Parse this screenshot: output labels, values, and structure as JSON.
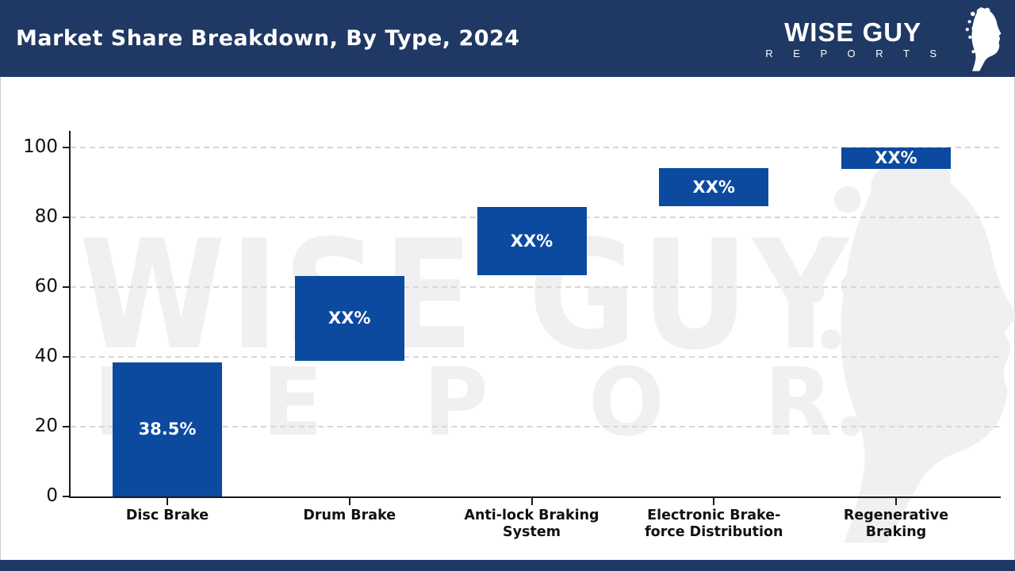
{
  "header": {
    "title": "Market Share Breakdown, By Type, 2024",
    "logo": {
      "line1": "WISE GUY",
      "line2": "R E P O R T S"
    }
  },
  "watermark": {
    "line1": "WISE GUY",
    "line2": "R E P O R T S"
  },
  "colors": {
    "header_bg": "#1f3864",
    "bar": "#0b4a9f",
    "value_label": "#ffffff",
    "gridline": "#d7d7d7",
    "watermark": "#f0f0f2"
  },
  "chart_data": {
    "type": "bar",
    "variant": "waterfall",
    "title": "Market Share Breakdown, By Type, 2024",
    "xlabel": "",
    "ylabel": "",
    "ylim": [
      0,
      105
    ],
    "yticks": [
      0,
      20,
      40,
      60,
      80,
      100
    ],
    "grid": "horizontal-dashed",
    "legend": "none",
    "bar_color": "#0b4a9f",
    "categories": [
      "Disc Brake",
      "Drum Brake",
      "Anti-lock Braking System",
      "Electronic Brake-force Distribution",
      "Regenerative Braking"
    ],
    "tick_label_lines": [
      [
        "Disc Brake"
      ],
      [
        "Drum Brake"
      ],
      [
        "Anti-lock Braking",
        "System"
      ],
      [
        "Electronic Brake-",
        "force Distribution"
      ],
      [
        "Regenerative",
        "Braking"
      ]
    ],
    "segments": [
      {
        "category": "Disc Brake",
        "start": 0,
        "end": 38.5,
        "label": "38.5%"
      },
      {
        "category": "Drum Brake",
        "start": 38.9,
        "end": 63.2,
        "label": "XX%"
      },
      {
        "category": "Anti-lock Braking System",
        "start": 63.4,
        "end": 83.0,
        "label": "XX%"
      },
      {
        "category": "Electronic Brake-force Distribution",
        "start": 83.2,
        "end": 94.1,
        "label": "XX%"
      },
      {
        "category": "Regenerative Braking",
        "start": 93.9,
        "end": 100,
        "label": "XX%"
      }
    ]
  }
}
